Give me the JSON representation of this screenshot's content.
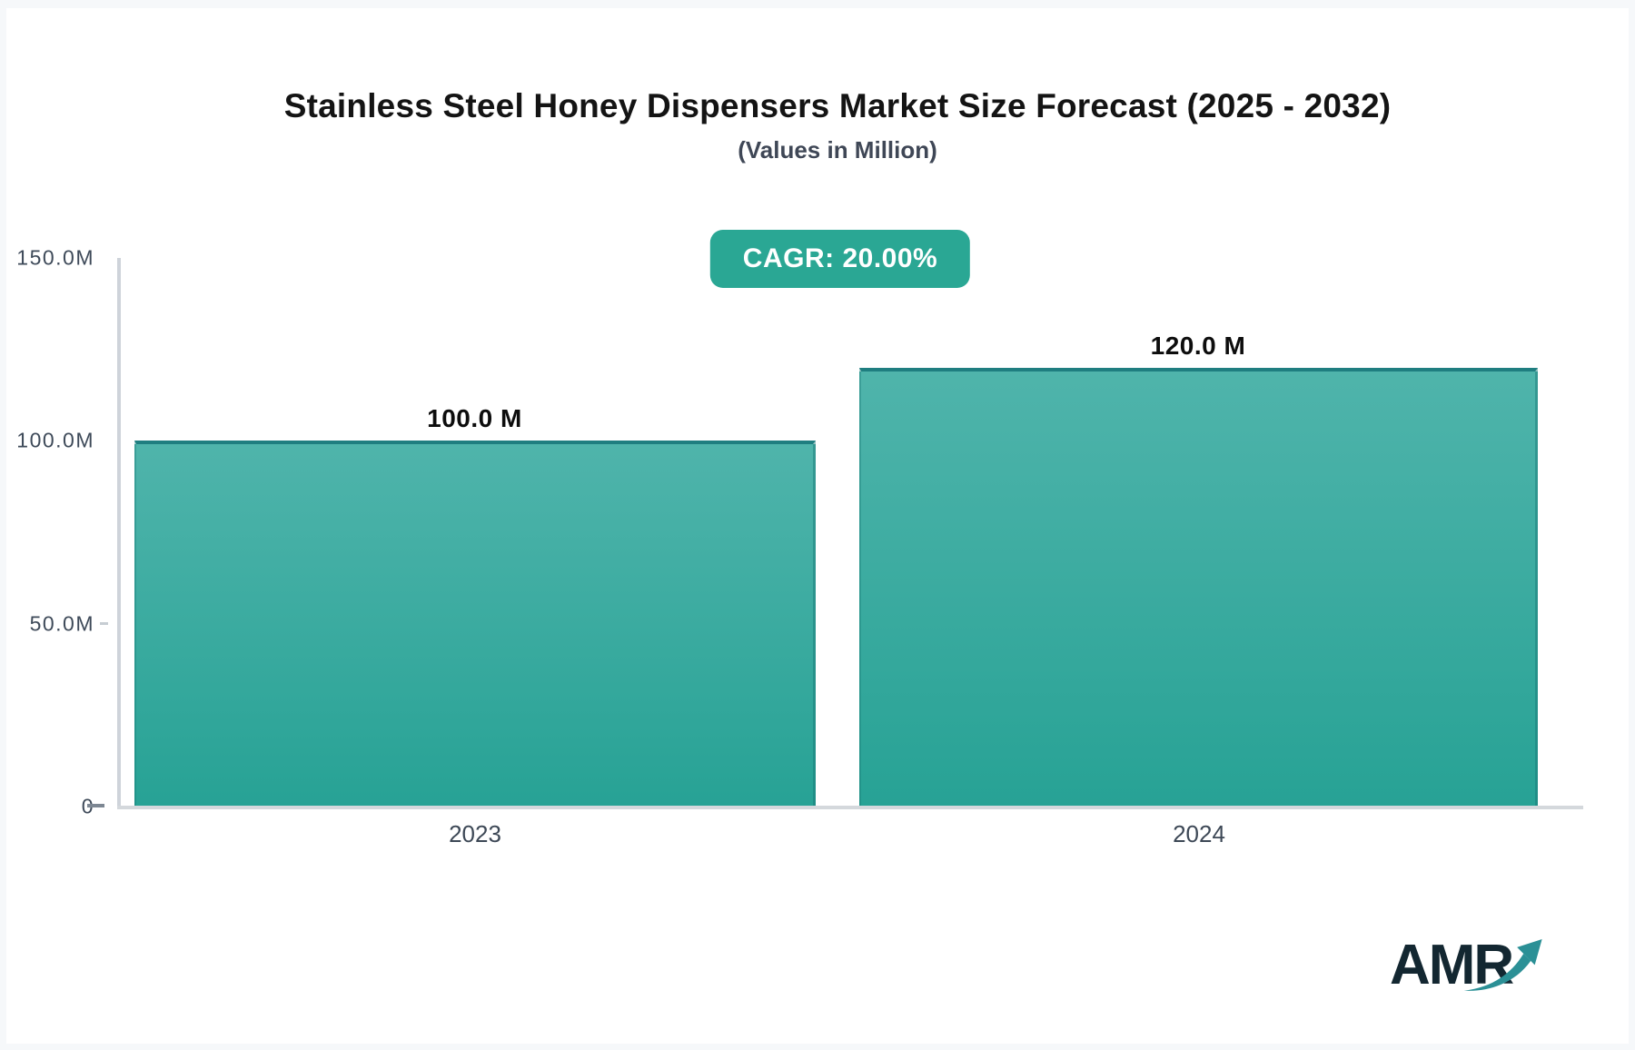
{
  "chart_data": {
    "type": "bar",
    "title": "Stainless Steel Honey Dispensers Market Size Forecast (2025 - 2032)",
    "subtitle": "(Values in Million)",
    "cagr_badge": "CAGR: 20.00%",
    "categories": [
      "2023",
      "2024"
    ],
    "series": [
      {
        "name": "Market Size",
        "values": [
          100.0,
          120.0
        ]
      }
    ],
    "value_labels": [
      "100.0 M",
      "120.0 M"
    ],
    "unit": "Million",
    "ylim": [
      0,
      150
    ],
    "ytick_values": [
      150,
      100,
      50,
      0
    ],
    "ytick_labels": [
      "150.0M",
      "100.0M",
      "50.0M",
      "0"
    ],
    "grid": false,
    "legend_position": "none"
  },
  "branding": {
    "logo_text": "AMR",
    "logo_arrow_icon": "growth-arrow-icon"
  },
  "colors": {
    "accent_teal": "#2aa794",
    "bar_gradient_top": "#4fb4ab",
    "bar_gradient_bottom": "#27a295",
    "bar_top_border": "#1f7e80",
    "axis_line": "#ced3da",
    "baseline": "#d4d8dc",
    "label_dark": "#3e4a59",
    "title_color": "#141414",
    "logo_dark": "#132731",
    "logo_arrow": "#2b9096"
  }
}
